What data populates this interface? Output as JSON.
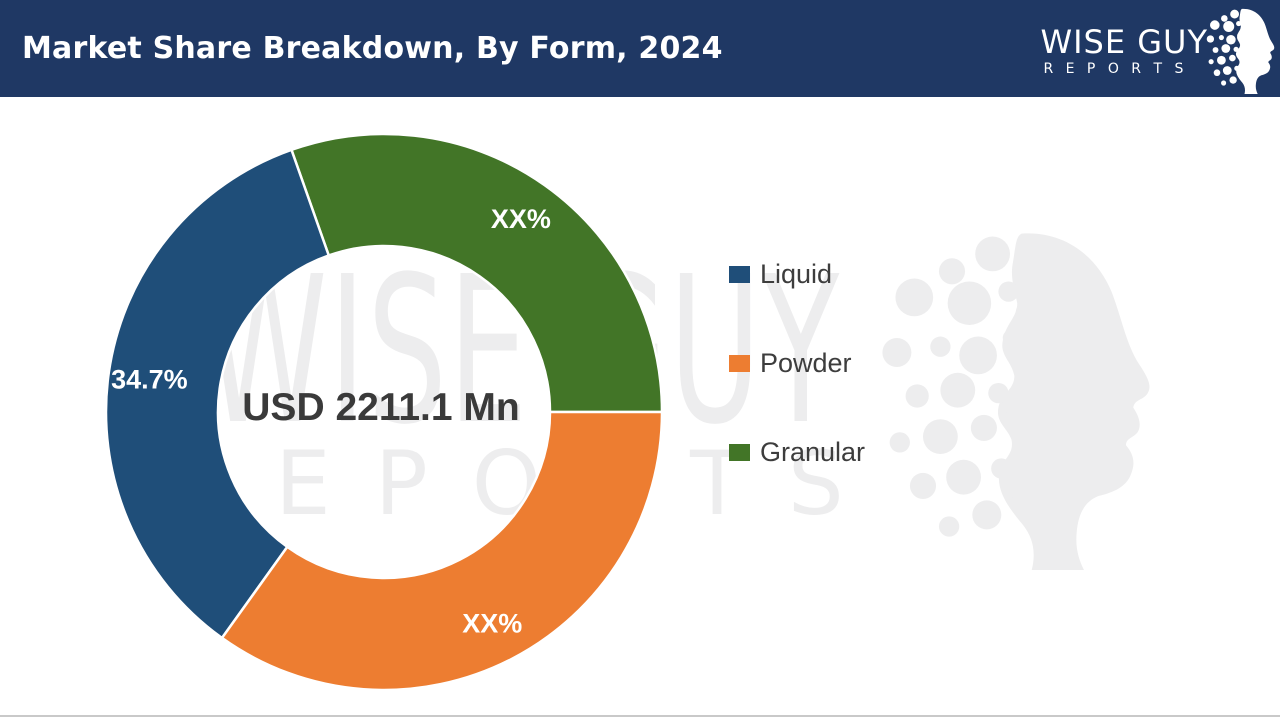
{
  "header": {
    "title": "Market Share Breakdown, By Form, 2024",
    "logo": {
      "line1": "WISE GUY",
      "line2": "R E P O R T S"
    }
  },
  "watermark": {
    "line1": "WISE GUY",
    "line2": "R E P O R T S"
  },
  "chart_data": {
    "type": "donut",
    "title": "Market Share Breakdown, By Form, 2024",
    "center_label": "USD 2211.1 Mn",
    "legend_position": "right",
    "slices": [
      {
        "name": "Liquid",
        "value": 34.7,
        "display_label": "34.7%",
        "color": "#1f4e79"
      },
      {
        "name": "Powder",
        "value": 34.9,
        "display_label": "XX%",
        "color": "#ed7d31"
      },
      {
        "name": "Granular",
        "value": 30.4,
        "display_label": "XX%",
        "color": "#427527"
      }
    ],
    "draw_order": [
      "Granular",
      "Liquid",
      "Powder"
    ],
    "start_angle_deg": 0,
    "counterclockwise": true
  },
  "colors": {
    "header_bg": "#1f3864",
    "separator": "#ffffff",
    "center_text": "#3a3a3a",
    "legend_text": "#3d3d3d",
    "watermark": "#ededee",
    "bottom_rule": "#c9c9c9"
  }
}
